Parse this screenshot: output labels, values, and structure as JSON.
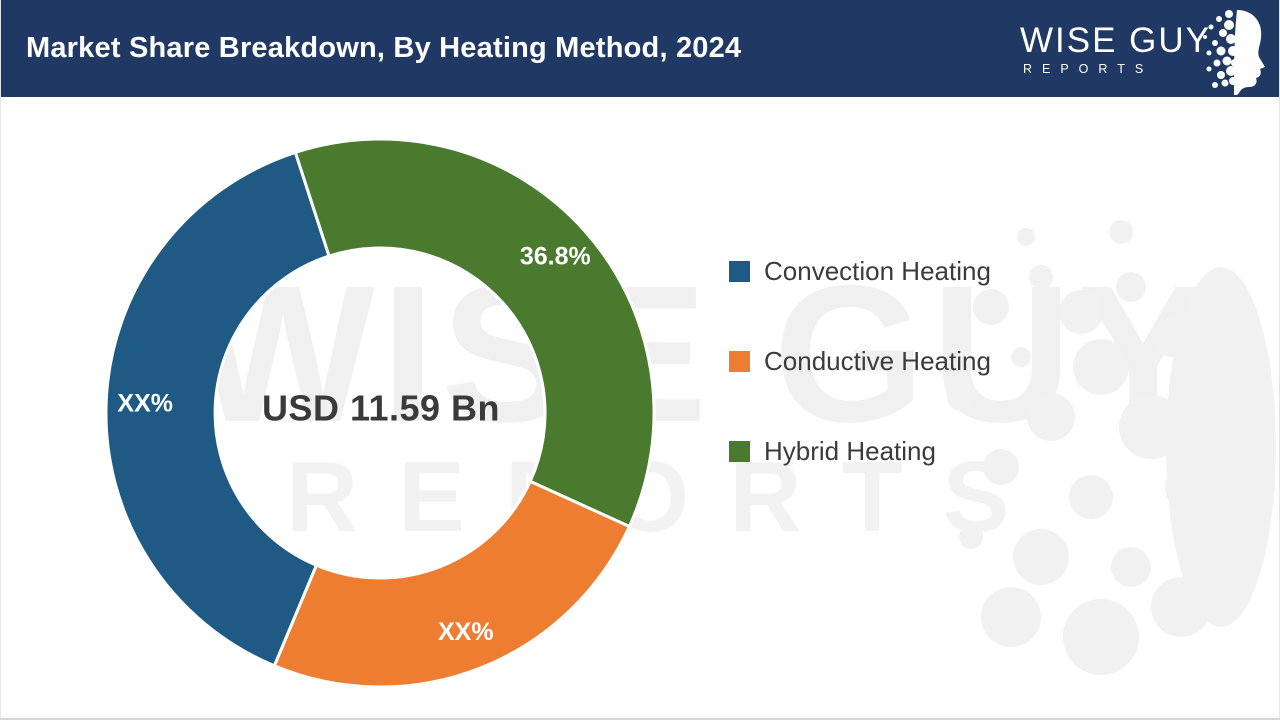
{
  "header": {
    "title": "Market Share Breakdown, By Heating Method, 2024",
    "background_color": "#1f3864",
    "logo": {
      "wordmark": "WISE GUY",
      "subtext": "REPORTS"
    }
  },
  "chart_data": {
    "type": "pie",
    "subtype": "donut",
    "title": "Market Share Breakdown, By Heating Method, 2024",
    "center_label": "USD 11.59 Bn",
    "start_angle_deg": -18,
    "value_label_color": "#ffffff",
    "segments": [
      {
        "label": "Hybrid Heating",
        "display_value": "36.8%",
        "pct": 36.8,
        "color": "#4a7a2e"
      },
      {
        "label": "Conductive Heating",
        "display_value": "XX%",
        "pct": 24.5,
        "color": "#ed7d31"
      },
      {
        "label": "Convection Heating",
        "display_value": "XX%",
        "pct": 38.7,
        "color": "#1e5a83"
      }
    ],
    "legend_position": "right"
  },
  "legend": {
    "items": [
      {
        "label": "Convection Heating",
        "color": "#1e5a83"
      },
      {
        "label": "Conductive Heating",
        "color": "#ed7d31"
      },
      {
        "label": "Hybrid Heating",
        "color": "#4a7a2e"
      }
    ]
  },
  "watermark": {
    "wordmark": "WISE GUY",
    "subtext": "REPORTS"
  }
}
